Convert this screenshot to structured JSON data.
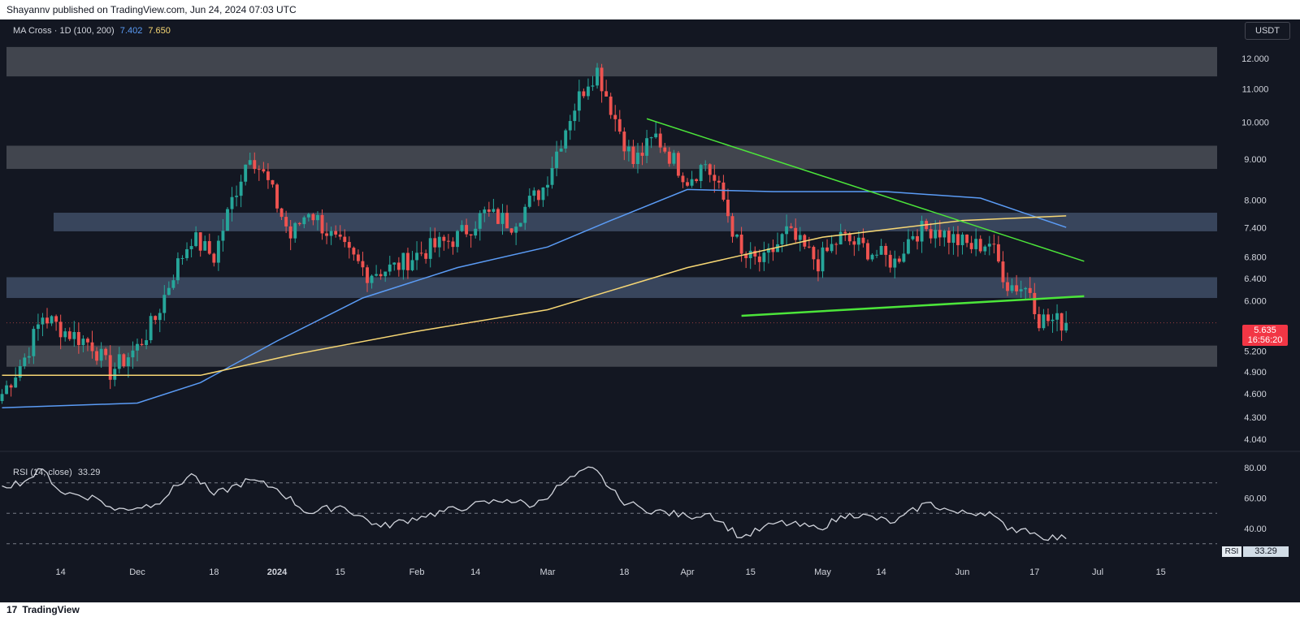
{
  "header": {
    "published": "Shayannv published on TradingView.com, Jun 24, 2024 07:03 UTC"
  },
  "indicator": {
    "name": "MA Cross · 1D (100, 200)",
    "ma100_value": "7.402",
    "ma200_value": "7.650"
  },
  "currency_button": "USDT",
  "rsi": {
    "label": "RSI (14, close)",
    "value": "33.29",
    "tag_label": "RSI",
    "ticks": [
      "80.00",
      "60.00",
      "40.00"
    ]
  },
  "price_tag": {
    "price": "5.635",
    "countdown": "16:56:20"
  },
  "footer": {
    "brand": "TradingView"
  },
  "colors": {
    "background": "#131722",
    "up": "#26a69a",
    "down": "#ef5350",
    "ma100": "#5b9cf6",
    "ma200": "#f7d774",
    "trend": "#4ce53a",
    "zone_gray": "#4a4d56",
    "zone_blue": "#3d4a63",
    "rsi_line": "#d1d4dc"
  },
  "chart_data": {
    "type": "candlestick",
    "y_scale": "log",
    "y_ticks": [
      "12.000",
      "11.000",
      "10.000",
      "9.000",
      "8.000",
      "7.400",
      "6.800",
      "6.400",
      "6.000",
      "5.200",
      "4.900",
      "4.600",
      "4.300",
      "4.040"
    ],
    "x_ticks": [
      "14",
      "Dec",
      "18",
      "2024",
      "15",
      "Feb",
      "14",
      "Mar",
      "18",
      "Apr",
      "15",
      "May",
      "14",
      "Jun",
      "17",
      "Jul",
      "15"
    ],
    "zones": [
      {
        "from": 11.4,
        "to": 12.4,
        "style": "gray"
      },
      {
        "from": 8.75,
        "to": 9.35,
        "style": "gray"
      },
      {
        "from": 7.32,
        "to": 7.72,
        "style": "blue"
      },
      {
        "from": 6.05,
        "to": 6.42,
        "style": "blue"
      },
      {
        "from": 4.97,
        "to": 5.28,
        "style": "gray"
      }
    ],
    "trendlines": [
      {
        "from": [
          "2024-03-23",
          10.1
        ],
        "to": [
          "2024-06-28",
          6.72
        ]
      },
      {
        "from": [
          "2024-04-13",
          5.75
        ],
        "to": [
          "2024-06-28",
          6.08
        ]
      }
    ],
    "keypoints": [
      {
        "date": "2023-11-01",
        "close": 4.6
      },
      {
        "date": "2023-11-06",
        "close": 5.1
      },
      {
        "date": "2023-11-10",
        "close": 5.75
      },
      {
        "date": "2023-11-15",
        "close": 5.5
      },
      {
        "date": "2023-11-21",
        "close": 5.3
      },
      {
        "date": "2023-11-25",
        "close": 4.9
      },
      {
        "date": "2023-12-01",
        "close": 5.25
      },
      {
        "date": "2023-12-05",
        "close": 5.7
      },
      {
        "date": "2023-12-09",
        "close": 6.5
      },
      {
        "date": "2023-12-13",
        "close": 7.2
      },
      {
        "date": "2023-12-18",
        "close": 6.8
      },
      {
        "date": "2023-12-22",
        "close": 8.0
      },
      {
        "date": "2023-12-26",
        "close": 9.2
      },
      {
        "date": "2023-12-30",
        "close": 8.4
      },
      {
        "date": "2024-01-04",
        "close": 7.2
      },
      {
        "date": "2024-01-08",
        "close": 7.8
      },
      {
        "date": "2024-01-14",
        "close": 7.1
      },
      {
        "date": "2024-01-21",
        "close": 6.5
      },
      {
        "date": "2024-01-27",
        "close": 6.6
      },
      {
        "date": "2024-02-02",
        "close": 6.9
      },
      {
        "date": "2024-02-10",
        "close": 7.2
      },
      {
        "date": "2024-02-16",
        "close": 7.7
      },
      {
        "date": "2024-02-22",
        "close": 7.5
      },
      {
        "date": "2024-02-29",
        "close": 8.3
      },
      {
        "date": "2024-03-06",
        "close": 10.2
      },
      {
        "date": "2024-03-10",
        "close": 11.3
      },
      {
        "date": "2024-03-12",
        "close": 11.6
      },
      {
        "date": "2024-03-16",
        "close": 10.1
      },
      {
        "date": "2024-03-20",
        "close": 8.9
      },
      {
        "date": "2024-03-25",
        "close": 9.6
      },
      {
        "date": "2024-04-01",
        "close": 8.5
      },
      {
        "date": "2024-04-05",
        "close": 8.9
      },
      {
        "date": "2024-04-09",
        "close": 8.0
      },
      {
        "date": "2024-04-13",
        "close": 6.8
      },
      {
        "date": "2024-04-18",
        "close": 6.7
      },
      {
        "date": "2024-04-23",
        "close": 7.3
      },
      {
        "date": "2024-04-30",
        "close": 6.7
      },
      {
        "date": "2024-05-05",
        "close": 7.2
      },
      {
        "date": "2024-05-12",
        "close": 6.9
      },
      {
        "date": "2024-05-17",
        "close": 6.7
      },
      {
        "date": "2024-05-21",
        "close": 7.3
      },
      {
        "date": "2024-05-26",
        "close": 7.4
      },
      {
        "date": "2024-05-29",
        "close": 7.2
      },
      {
        "date": "2024-06-03",
        "close": 7.0
      },
      {
        "date": "2024-06-07",
        "close": 7.1
      },
      {
        "date": "2024-06-11",
        "close": 6.3
      },
      {
        "date": "2024-06-16",
        "close": 6.2
      },
      {
        "date": "2024-06-18",
        "close": 5.7
      },
      {
        "date": "2024-06-24",
        "close": 5.635
      }
    ],
    "ma100": [
      {
        "date": "2023-11-01",
        "value": 4.42
      },
      {
        "date": "2023-12-01",
        "value": 4.48
      },
      {
        "date": "2023-12-15",
        "value": 4.75
      },
      {
        "date": "2024-01-01",
        "value": 5.35
      },
      {
        "date": "2024-01-20",
        "value": 6.05
      },
      {
        "date": "2024-02-10",
        "value": 6.6
      },
      {
        "date": "2024-03-01",
        "value": 7.0
      },
      {
        "date": "2024-03-15",
        "value": 7.55
      },
      {
        "date": "2024-04-01",
        "value": 8.25
      },
      {
        "date": "2024-04-20",
        "value": 8.2
      },
      {
        "date": "2024-05-15",
        "value": 8.2
      },
      {
        "date": "2024-06-05",
        "value": 8.05
      },
      {
        "date": "2024-06-24",
        "value": 7.402
      }
    ],
    "ma200": [
      {
        "date": "2023-11-01",
        "value": 4.85
      },
      {
        "date": "2023-12-15",
        "value": 4.85
      },
      {
        "date": "2024-01-05",
        "value": 5.15
      },
      {
        "date": "2024-02-01",
        "value": 5.5
      },
      {
        "date": "2024-03-01",
        "value": 5.85
      },
      {
        "date": "2024-04-01",
        "value": 6.6
      },
      {
        "date": "2024-05-01",
        "value": 7.2
      },
      {
        "date": "2024-06-01",
        "value": 7.55
      },
      {
        "date": "2024-06-24",
        "value": 7.65
      }
    ],
    "rsi_levels": [
      70,
      50,
      30
    ],
    "rsi_points": [
      {
        "date": "2023-11-01",
        "value": 68
      },
      {
        "date": "2023-11-06",
        "value": 71
      },
      {
        "date": "2023-11-10",
        "value": 79
      },
      {
        "date": "2023-11-14",
        "value": 64
      },
      {
        "date": "2023-11-22",
        "value": 60
      },
      {
        "date": "2023-11-26",
        "value": 52
      },
      {
        "date": "2023-12-05",
        "value": 56
      },
      {
        "date": "2023-12-13",
        "value": 76
      },
      {
        "date": "2023-12-18",
        "value": 62
      },
      {
        "date": "2023-12-26",
        "value": 72
      },
      {
        "date": "2024-01-01",
        "value": 66
      },
      {
        "date": "2024-01-08",
        "value": 50
      },
      {
        "date": "2024-01-15",
        "value": 55
      },
      {
        "date": "2024-01-24",
        "value": 41
      },
      {
        "date": "2024-02-02",
        "value": 48
      },
      {
        "date": "2024-02-13",
        "value": 55
      },
      {
        "date": "2024-02-21",
        "value": 59
      },
      {
        "date": "2024-02-27",
        "value": 55
      },
      {
        "date": "2024-03-05",
        "value": 71
      },
      {
        "date": "2024-03-11",
        "value": 80
      },
      {
        "date": "2024-03-17",
        "value": 59
      },
      {
        "date": "2024-03-22",
        "value": 53
      },
      {
        "date": "2024-04-01",
        "value": 48
      },
      {
        "date": "2024-04-06",
        "value": 50
      },
      {
        "date": "2024-04-13",
        "value": 34
      },
      {
        "date": "2024-04-21",
        "value": 44
      },
      {
        "date": "2024-04-30",
        "value": 40
      },
      {
        "date": "2024-05-07",
        "value": 50
      },
      {
        "date": "2024-05-17",
        "value": 44
      },
      {
        "date": "2024-05-24",
        "value": 57
      },
      {
        "date": "2024-05-31",
        "value": 50
      },
      {
        "date": "2024-06-07",
        "value": 51
      },
      {
        "date": "2024-06-11",
        "value": 39
      },
      {
        "date": "2024-06-15",
        "value": 40
      },
      {
        "date": "2024-06-18",
        "value": 35
      },
      {
        "date": "2024-06-24",
        "value": 33.29
      }
    ]
  }
}
